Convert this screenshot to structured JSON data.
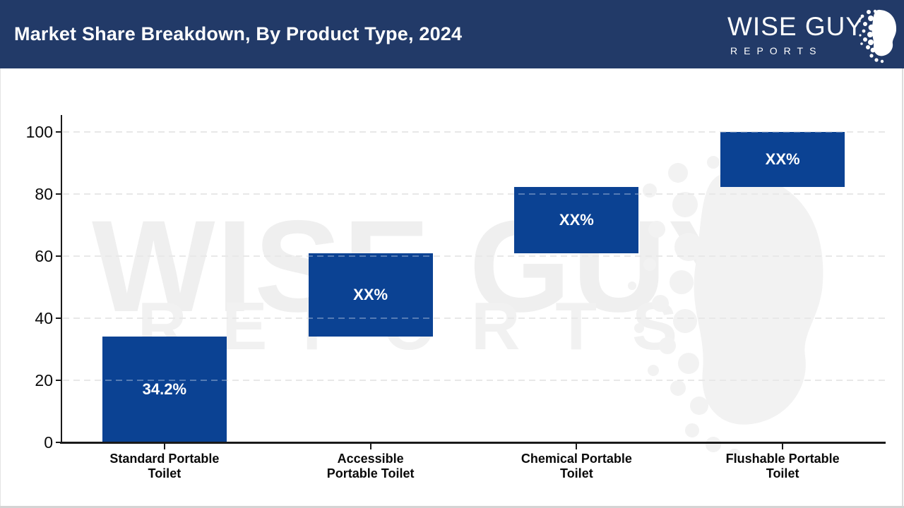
{
  "header": {
    "title": "Market Share Breakdown, By Product Type, 2024",
    "logo": {
      "name": "WISE GUY",
      "tagline": "REPORTS"
    }
  },
  "watermark": {
    "line1": "WISE GUY",
    "line2": "REPORTS"
  },
  "chart_data": {
    "type": "bar",
    "subtype": "floating-segment-waterfall",
    "title": "Market Share Breakdown, By Product Type, 2024",
    "xlabel": "",
    "ylabel": "",
    "ylim": [
      0,
      100
    ],
    "yticks": [
      0,
      20,
      40,
      60,
      80,
      100
    ],
    "grid": "dashed-horizontal",
    "legend": "none",
    "bar_color": "#0B4293",
    "categories": [
      "Standard Portable Toilet",
      "Accessible Portable Toilet",
      "Chemical Portable Toilet",
      "Flushable Portable Toilet"
    ],
    "category_lines": [
      [
        "Standard Portable",
        "Toilet"
      ],
      [
        "Accessible",
        "Portable Toilet"
      ],
      [
        "Chemical Portable",
        "Toilet"
      ],
      [
        "Flushable Portable",
        "Toilet"
      ]
    ],
    "segments": [
      {
        "category": "Standard Portable Toilet",
        "label": "34.2%",
        "start": 0,
        "end": 34.2
      },
      {
        "category": "Accessible Portable Toilet",
        "label": "XX%",
        "start": 34.2,
        "end": 61
      },
      {
        "category": "Chemical Portable Toilet",
        "label": "XX%",
        "start": 61,
        "end": 82.3
      },
      {
        "category": "Flushable Portable Toilet",
        "label": "XX%",
        "start": 82.3,
        "end": 100
      }
    ]
  },
  "colors": {
    "header_bg": "#223A68",
    "bar": "#0B4293",
    "grid": "#DEDEDE",
    "axis": "#1a1a1a",
    "watermark": "#EFEFEF"
  }
}
